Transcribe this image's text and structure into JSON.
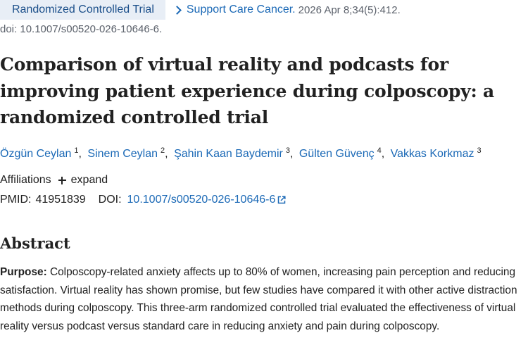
{
  "header": {
    "publication_type": "Randomized Controlled Trial",
    "journal": "Support Care Cancer.",
    "citation": "2026 Apr 8;34(5):412.",
    "doi_line": "doi: 10.1007/s00520-026-10646-6."
  },
  "article": {
    "title": "Comparison of virtual reality and podcasts for improving patient experience during colposcopy: a randomized controlled trial"
  },
  "authors": [
    {
      "name": "Özgün Ceylan",
      "affil": "1"
    },
    {
      "name": "Sinem Ceylan",
      "affil": "2"
    },
    {
      "name": "Şahin Kaan Baydemir",
      "affil": "3"
    },
    {
      "name": "Gülten Güvenç",
      "affil": "4"
    },
    {
      "name": "Vakkas Korkmaz",
      "affil": "3"
    }
  ],
  "author_separator": ",",
  "affiliations": {
    "label": "Affiliations",
    "expand_label": "expand",
    "expand_icon": "plus-icon"
  },
  "identifiers": {
    "pmid_label": "PMID:",
    "pmid": "41951839",
    "doi_label": "DOI:",
    "doi": "10.1007/s00520-026-10646-6",
    "doi_icon": "external-link-icon"
  },
  "abstract": {
    "heading": "Abstract",
    "purpose_label": "Purpose:",
    "purpose_text": " Colposcopy-related anxiety affects up to 80% of women, increasing pain perception and reducing satisfaction. Virtual reality has shown promise, but few studies have compared it with other active distraction methods during colposcopy. This three-arm randomized controlled trial evaluated the effectiveness of virtual reality versus podcast versus standard care in reducing anxiety and pain during colposcopy."
  },
  "colors": {
    "link": "#1b69b6",
    "badge_bg": "#e8eef6",
    "text": "#212121",
    "muted": "#5b616b"
  }
}
